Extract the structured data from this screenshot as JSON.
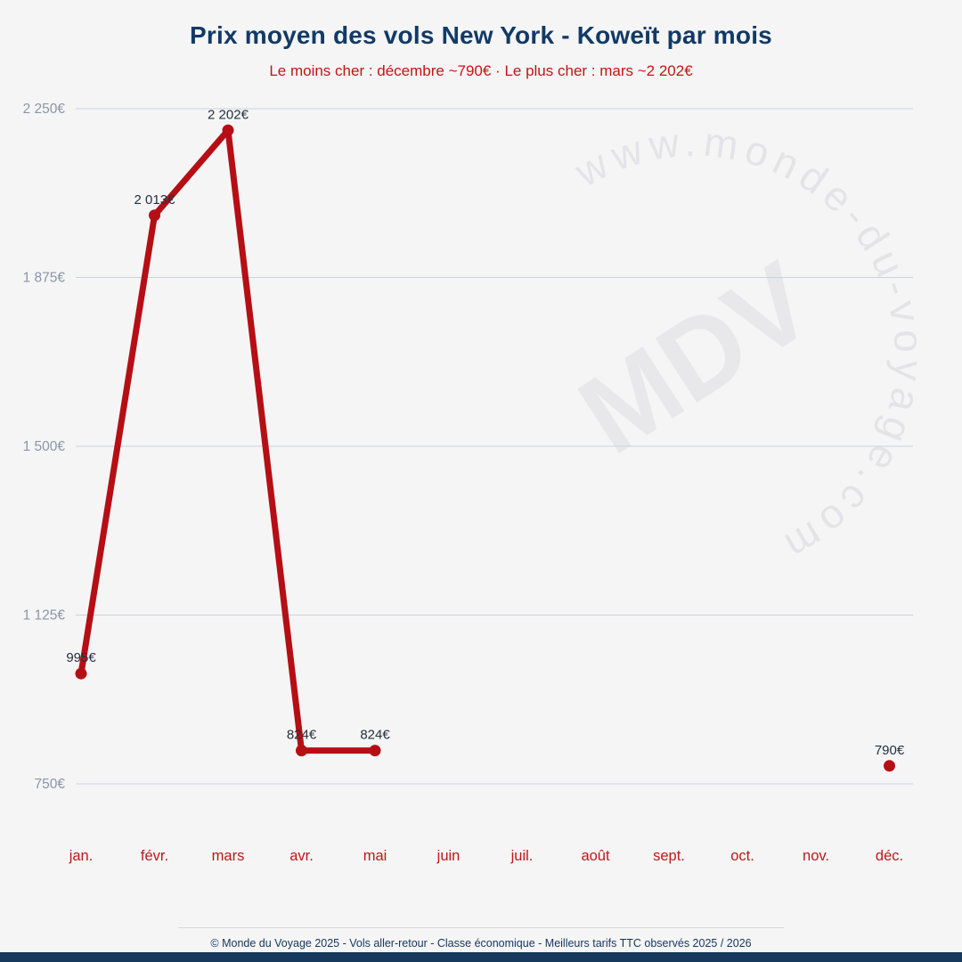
{
  "page": {
    "title": "Prix moyen des vols New York - Koweït par mois",
    "subtitle": "Le moins cher : décembre ~790€ · Le plus cher : mars ~2 202€",
    "footer": "© Monde du Voyage 2025 - Vols aller-retour - Classe économique - Meilleurs tarifs TTC observés 2025 / 2026"
  },
  "watermark": {
    "circle_text": "www.monde-du-voyage.com",
    "center_text": "MDV"
  },
  "chart_data": {
    "type": "line",
    "title": "Prix moyen des vols New York - Koweït par mois",
    "categories": [
      "jan.",
      "févr.",
      "mars",
      "avr.",
      "mai",
      "juin",
      "juil.",
      "août",
      "sept.",
      "oct.",
      "nov.",
      "déc."
    ],
    "values": [
      995,
      2013,
      2202,
      824,
      824,
      null,
      null,
      null,
      null,
      null,
      null,
      790
    ],
    "point_labels": [
      "995€",
      "2 013€",
      "2 202€",
      "824€",
      "824€",
      null,
      null,
      null,
      null,
      null,
      null,
      "790€"
    ],
    "xlabel": "",
    "ylabel": "",
    "ylim": [
      750,
      2250
    ],
    "yticks": [
      750,
      1125,
      1500,
      1875,
      2250
    ],
    "ytick_labels": [
      "750€",
      "1 125€",
      "1 500€",
      "1 875€",
      "2 250€"
    ],
    "grid": true,
    "legend": "none",
    "line_color": "#b50f15",
    "grid_color": "#c9d2e0",
    "tick_color": "#8b95a8",
    "xlabel_color": "#bd1818",
    "label_color": "#23303f"
  }
}
